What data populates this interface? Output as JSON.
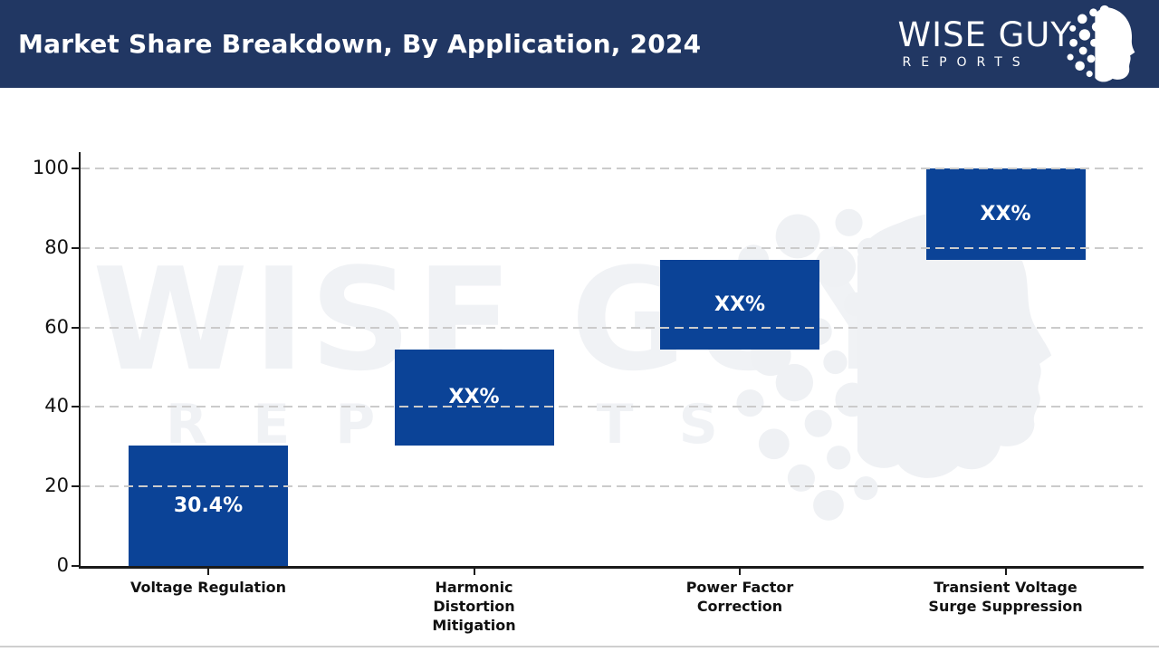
{
  "header": {
    "title": "Market Share Breakdown, By Application, 2024",
    "logo": {
      "wordmark": "WISE GUY",
      "subtext": "REPORTS"
    }
  },
  "watermark": {
    "wordmark": "WISE GUY",
    "subtext": "REPORTS"
  },
  "chart_data": {
    "type": "bar",
    "subtype": "waterfall",
    "title": "Market Share Breakdown, By Application, 2024",
    "categories": [
      "Voltage Regulation",
      "Harmonic Distortion Mitigation",
      "Power Factor Correction",
      "Transient Voltage Surge Suppression"
    ],
    "categories_lines": [
      [
        "Voltage Regulation"
      ],
      [
        "Harmonic",
        "Distortion",
        "Mitigation"
      ],
      [
        "Power Factor",
        "Correction"
      ],
      [
        "Transient Voltage",
        "Surge Suppression"
      ]
    ],
    "series": [
      {
        "name": "Market Share (%)",
        "segments": [
          {
            "category": "Voltage Regulation",
            "base": 0,
            "top": 30.4,
            "label": "30.4%"
          },
          {
            "category": "Harmonic Distortion Mitigation",
            "base": 30.4,
            "top": 54.5,
            "label": "XX%"
          },
          {
            "category": "Power Factor Correction",
            "base": 54.5,
            "top": 77.0,
            "label": "XX%"
          },
          {
            "category": "Transient Voltage Surge Suppression",
            "base": 77.0,
            "top": 100.0,
            "label": "XX%"
          }
        ]
      }
    ],
    "ylim": [
      0,
      100
    ],
    "yticks": [
      0,
      20,
      40,
      60,
      80,
      100
    ],
    "grid": "horizontal-dashed",
    "legend": "none",
    "bar_color": "#0b4397",
    "bar_label_color": "#ffffff",
    "xlabel": "",
    "ylabel": ""
  },
  "colors": {
    "header_bg": "#213763",
    "bar": "#0b4397",
    "grid": "#cbcbcb",
    "axis": "#1a1a1a",
    "watermark": "#f0f2f5",
    "bottom_rule": "#cfcfcf"
  }
}
